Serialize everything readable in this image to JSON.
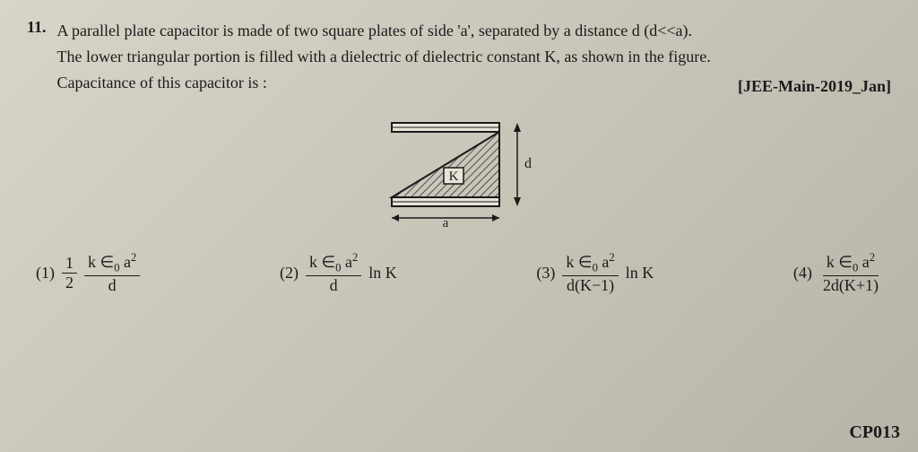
{
  "question": {
    "number": "11.",
    "line1": "A parallel plate capacitor is made of two square plates of side 'a', separated by a distance d (d<<a).",
    "line2": "The lower triangular portion is filled with a dielectric of dielectric constant K, as shown in the figure.",
    "line3": "Capacitance of this capacitor is :",
    "exam_tag": "[JEE-Main-2019_Jan]"
  },
  "figure": {
    "width": 190,
    "height": 130,
    "plate_stroke": "#1a1a1a",
    "plate_fill": "#e8e4d8",
    "hatch_stroke": "#2a2a2a",
    "label_K": "K",
    "label_a": "a",
    "label_d": "d",
    "text_color": "#1a1a1a"
  },
  "options": {
    "opt1": {
      "num": "(1)",
      "frac1_num": "1",
      "frac1_den": "2",
      "frac2_num_html": "k ∈<span class=\"sub\">0</span> a<span class=\"sup\">2</span>",
      "frac2_den": "d"
    },
    "opt2": {
      "num": "(2)",
      "frac_num_html": "k ∈<span class=\"sub\">0</span> a<span class=\"sup\">2</span>",
      "frac_den": "d",
      "suffix": "ln K"
    },
    "opt3": {
      "num": "(3)",
      "frac_num_html": "k ∈<span class=\"sub\">0</span> a<span class=\"sup\">2</span>",
      "frac_den": "d(K−1)",
      "suffix": "ln K"
    },
    "opt4": {
      "num": "(4)",
      "frac_num_html": "k ∈<span class=\"sub\">0</span> a<span class=\"sup\">2</span>",
      "frac_den": "2d(K+1)"
    }
  },
  "page_code": "CP013"
}
